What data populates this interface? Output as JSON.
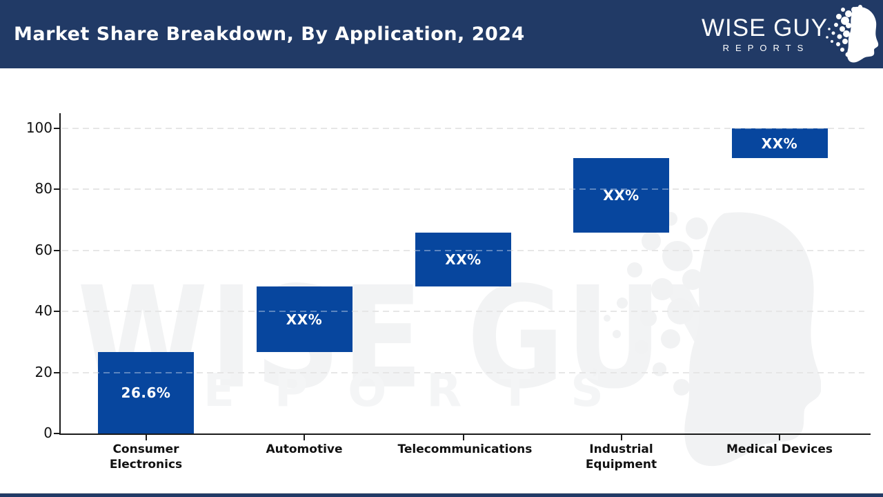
{
  "header": {
    "title": "Market Share Breakdown, By Application, 2024",
    "bg_color": "#213A66",
    "logo": {
      "top": "WISE GUY",
      "bottom": "REPORTS"
    }
  },
  "watermark": {
    "line1": "WISE GUY",
    "line2": "REPORTS"
  },
  "chart_data": {
    "type": "bar",
    "subtype": "waterfall-floating-bars",
    "title": "Market Share Breakdown, By Application, 2024",
    "categories": [
      "Consumer Electronics",
      "Automotive",
      "Telecommunications",
      "Industrial Equipment",
      "Medical Devices"
    ],
    "segments": [
      {
        "category": "Consumer Electronics",
        "start": 0,
        "end": 26.6,
        "label": "26.6%"
      },
      {
        "category": "Automotive",
        "start": 26.6,
        "end": 48.1,
        "label": "XX%"
      },
      {
        "category": "Telecommunications",
        "start": 48.1,
        "end": 65.9,
        "label": "XX%"
      },
      {
        "category": "Industrial Equipment",
        "start": 65.9,
        "end": 90.2,
        "label": "XX%"
      },
      {
        "category": "Medical Devices",
        "start": 90.2,
        "end": 100,
        "label": "XX%"
      }
    ],
    "xlabel": "",
    "ylabel": "",
    "ylim": [
      0,
      105
    ],
    "yticks": [
      0,
      20,
      40,
      60,
      80,
      100
    ],
    "grid": "horizontal-dashed",
    "legend": "none",
    "bar_color": "#07469E",
    "bar_label_color": "#ffffff",
    "axis_color": "#1a1a1a",
    "gridline_color": "#d9d9d9"
  }
}
